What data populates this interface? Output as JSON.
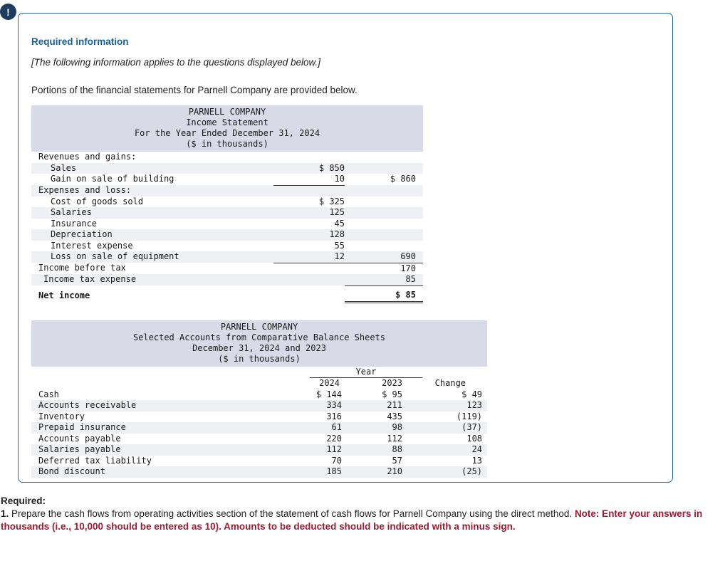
{
  "page": {
    "alert_icon": "!",
    "required_info_title": "Required information",
    "applies_note": "[The following information applies to the questions displayed below.]",
    "intro": "Portions of the financial statements for Parnell Company are provided below."
  },
  "income_statement": {
    "header": [
      "PARNELL COMPANY",
      "Income Statement",
      "For the Year Ended December 31, 2024",
      "($ in thousands)"
    ],
    "rows": [
      {
        "label": "Revenues and gains:"
      },
      {
        "label": "Sales",
        "v1": "$ 850"
      },
      {
        "label": "Gain on sale of building",
        "v1": "10",
        "v2": "$ 860"
      },
      {
        "label": "Expenses and loss:"
      },
      {
        "label": "Cost of goods sold",
        "v1": "$ 325"
      },
      {
        "label": "Salaries",
        "v1": "125"
      },
      {
        "label": "Insurance",
        "v1": "45"
      },
      {
        "label": "Depreciation",
        "v1": "128"
      },
      {
        "label": "Interest expense",
        "v1": "55"
      },
      {
        "label": "Loss on sale of equipment",
        "v1": "12",
        "v2": "690"
      },
      {
        "label": "Income before tax",
        "v2": "170"
      },
      {
        "label": "Income tax expense",
        "v2": "85"
      },
      {
        "label": "Net income",
        "v2": "$ 85"
      }
    ]
  },
  "balance_sheet": {
    "header": [
      "PARNELL COMPANY",
      "Selected Accounts from Comparative Balance Sheets",
      "December 31, 2024 and 2023",
      "($ in thousands)"
    ],
    "year_group_label": "Year",
    "columns": [
      "2024",
      "2023",
      "Change"
    ],
    "rows": [
      {
        "label": "Cash",
        "y2024": "$ 144",
        "y2023": "$ 95",
        "change": "$ 49"
      },
      {
        "label": "Accounts receivable",
        "y2024": "334",
        "y2023": "211",
        "change": "123"
      },
      {
        "label": "Inventory",
        "y2024": "316",
        "y2023": "435",
        "change": "(119)"
      },
      {
        "label": "Prepaid insurance",
        "y2024": "61",
        "y2023": "98",
        "change": "(37)"
      },
      {
        "label": "Accounts payable",
        "y2024": "220",
        "y2023": "112",
        "change": "108"
      },
      {
        "label": "Salaries payable",
        "y2024": "112",
        "y2023": "88",
        "change": "24"
      },
      {
        "label": "Deferred tax liability",
        "y2024": "70",
        "y2023": "57",
        "change": "13"
      },
      {
        "label": "Bond discount",
        "y2024": "185",
        "y2023": "210",
        "change": "(25)"
      }
    ]
  },
  "required_section": {
    "title": "Required:",
    "item_number": "1.",
    "item_text": "Prepare the cash flows from operating activities section of the statement of cash flows for Parnell Company using the direct method.",
    "note": "Note: Enter your answers in thousands (i.e., 10,000 should be entered as 10). Amounts to be deducted should be indicated with a minus sign."
  },
  "colors": {
    "box_border": "#2d6a9f",
    "title_blue": "#1c5f94",
    "icon_navy": "#1d3c5e",
    "table_header_bg": "#d8dae7",
    "row_shade": "#eff0f4",
    "note_red": "#9e1b32"
  }
}
